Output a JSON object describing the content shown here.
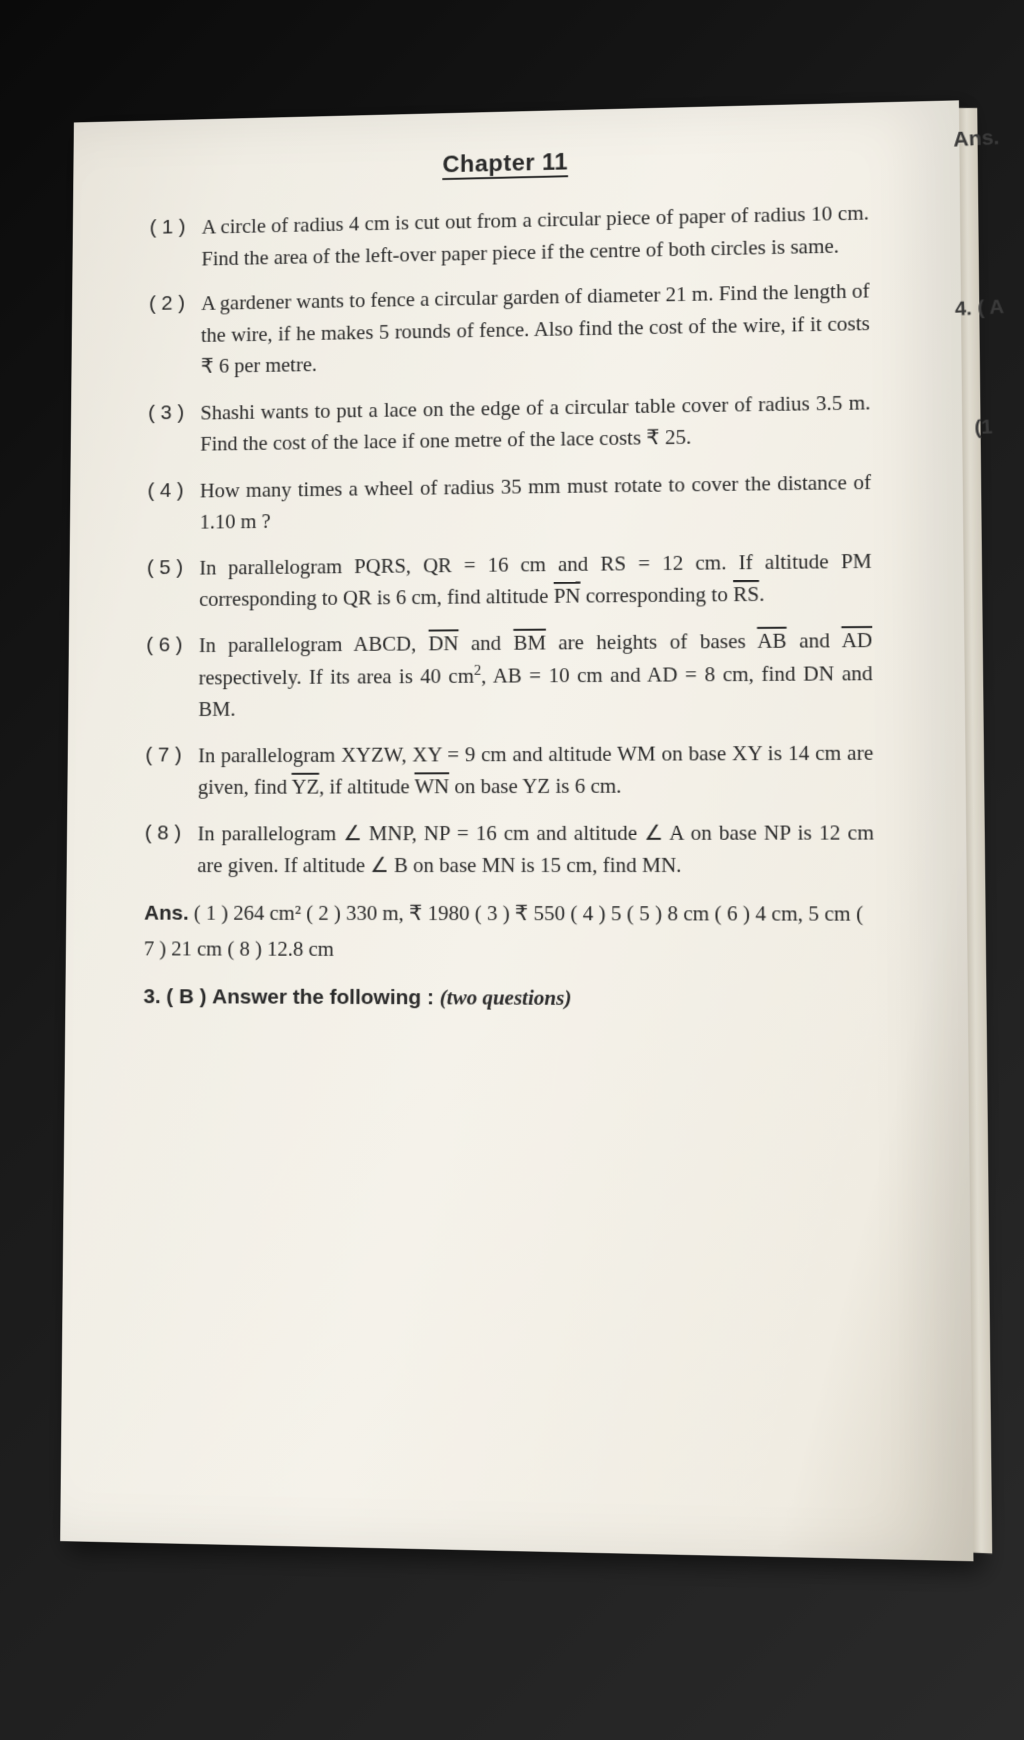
{
  "colors": {
    "surface_dark": "#1a1a1a",
    "page_bg": "#f5f2ea",
    "text": "#2a2a2a",
    "shadow": "rgba(0,0,0,0.6)"
  },
  "typography": {
    "title_fontsize": 24,
    "body_fontsize": 21,
    "line_height": 1.55,
    "font_family_title": "Arial, sans-serif",
    "font_family_body": "Georgia, Times New Roman, serif"
  },
  "chapter": {
    "title": "Chapter 11"
  },
  "margin_notes": {
    "ans": "Ans.",
    "four_a": "4. ( A",
    "one": "(1"
  },
  "questions": [
    {
      "num": "( 1 )",
      "text_parts": [
        "A circle of radius 4 cm is cut out from a circular piece of paper of radius 10 cm. Find the area of the left-over paper piece if the centre of both circles is same."
      ]
    },
    {
      "num": "( 2 )",
      "text_parts": [
        "A gardener wants to fence a circular garden of diameter 21 m. Find the length of the wire, if he makes 5 rounds of fence. Also find the cost of the wire, if it costs ",
        "RUPEE",
        " 6 per metre."
      ]
    },
    {
      "num": "( 3 )",
      "text_parts": [
        "Shashi wants to put a lace on the edge of a circular table cover of radius 3.5 m. Find the cost of the lace if one metre of the lace costs ",
        "RUPEE",
        " 25."
      ]
    },
    {
      "num": "( 4 )",
      "text_parts": [
        "How many times a wheel of radius 35 mm must rotate to cover the distance of 1.10 m ?"
      ]
    },
    {
      "num": "( 5 )",
      "text_parts": [
        "In parallelogram PQRS, QR = 16 cm and RS = 12 cm. If altitude PM corresponding to QR is 6 cm, find altitude ",
        "OVERLINE:PN",
        " corresponding to ",
        "OVERLINE:RS",
        "."
      ]
    },
    {
      "num": "( 6 )",
      "text_parts": [
        "In parallelogram ABCD, ",
        "OVERLINE:DN",
        " and ",
        "OVERLINE:BM",
        " are heights of bases ",
        "OVERLINE:AB",
        " and ",
        "OVERLINE:AD",
        " respectively. If its area is 40 cm",
        "SUP:2",
        ", AB = 10 cm and AD = 8 cm, find DN and BM."
      ]
    },
    {
      "num": "( 7 )",
      "text_parts": [
        "In parallelogram XYZW, XY = 9 cm and altitude WM on base XY is 14 cm are given, find ",
        "OVERLINE:YZ",
        ", if altitude ",
        "OVERLINE:WN",
        " on base YZ is 6 cm."
      ]
    },
    {
      "num": "( 8 )",
      "text_parts": [
        "In parallelogram ∠ MNP, NP = 16 cm and altitude ∠ A on base NP is 12 cm are given. If altitude ∠ B on base MN is 15 cm, find MN."
      ]
    }
  ],
  "answers": {
    "label": "Ans.",
    "items": [
      "( 1 ) 264 cm²",
      "( 2 ) 330 m,  ₹ 1980",
      "( 3 ) ₹ 550",
      "( 4 ) 5",
      "( 5 ) 8 cm",
      "( 6 ) 4 cm, 5 cm",
      "( 7 ) 21 cm",
      "( 8 ) 12.8 cm"
    ]
  },
  "sub_question": {
    "num": "3. ( B )",
    "text": "Answer the following :",
    "paren": "(two questions)"
  }
}
